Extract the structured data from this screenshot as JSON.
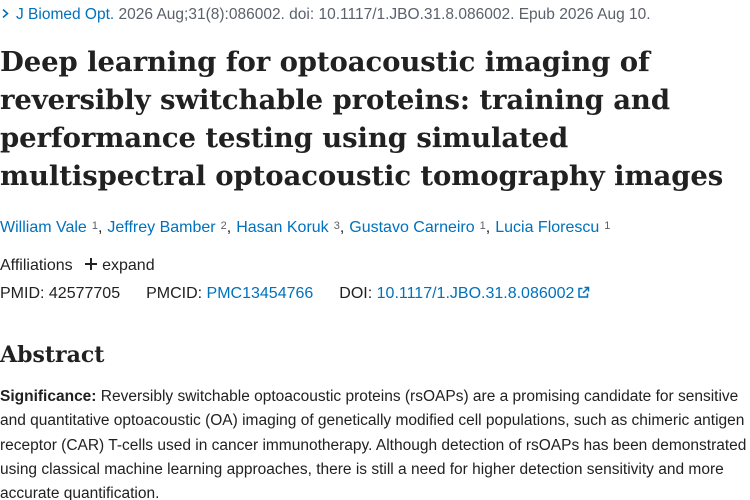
{
  "citation": {
    "journal": "J Biomed Opt.",
    "details": "2026 Aug;31(8):086002. doi: 10.1117/1.JBO.31.8.086002. Epub 2026 Aug 10."
  },
  "article": {
    "title": "Deep learning for optoacoustic imaging of reversibly switchable proteins: training and performance testing using simulated multispectral optoacoustic tomography images"
  },
  "authors": [
    {
      "name": "William Vale",
      "affiliation": "1"
    },
    {
      "name": "Jeffrey Bamber",
      "affiliation": "2"
    },
    {
      "name": "Hasan Koruk",
      "affiliation": "3"
    },
    {
      "name": "Gustavo Carneiro",
      "affiliation": "1"
    },
    {
      "name": "Lucia Florescu",
      "affiliation": "1"
    }
  ],
  "affiliations": {
    "label": "Affiliations",
    "expand_label": "expand"
  },
  "identifiers": {
    "pmid_label": "PMID:",
    "pmid": "42577705",
    "pmcid_label": "PMCID:",
    "pmcid": "PMC13454766",
    "doi_label": "DOI:",
    "doi": "10.1117/1.JBO.31.8.086002"
  },
  "abstract": {
    "heading": "Abstract",
    "significance_label": "Significance:",
    "significance_text": "Reversibly switchable optoacoustic proteins (rsOAPs) are a promising candidate for sensitive and quantitative optoacoustic (OA) imaging of genetically modified cell populations, such as chimeric antigen receptor (CAR) T-cells used in cancer immunotherapy. Although detection of rsOAPs has been demonstrated using classical machine learning approaches, there is still a need for higher detection sensitivity and more accurate quantification."
  },
  "colors": {
    "link": "#0071bc",
    "text": "#212121",
    "muted": "#5b616b"
  }
}
